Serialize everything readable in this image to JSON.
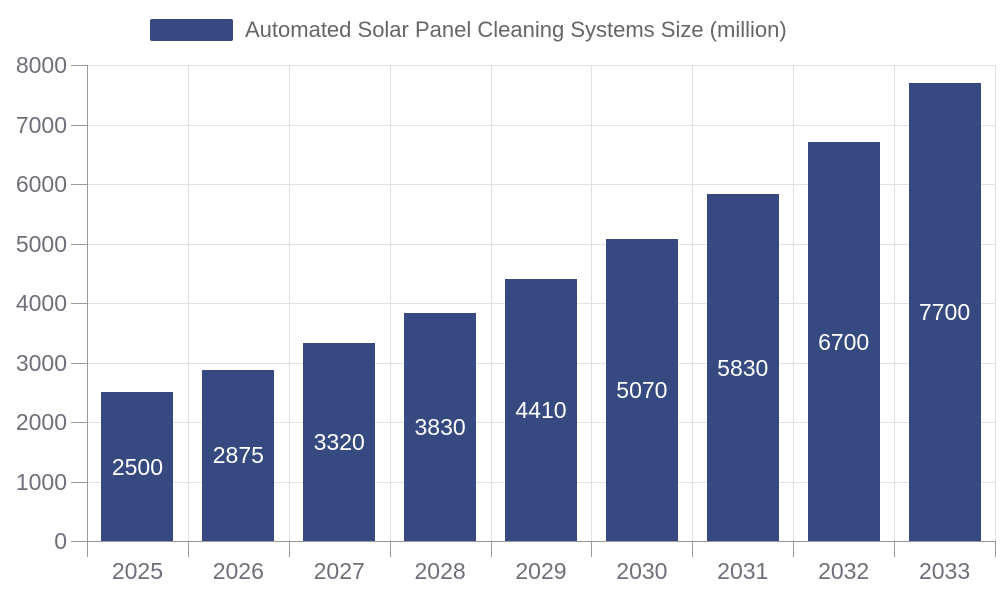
{
  "legend": {
    "label": "Automated Solar Panel Cleaning Systems Size (million)"
  },
  "chart_data": {
    "type": "bar",
    "title": "Automated Solar Panel Cleaning Systems Size (million)",
    "categories": [
      "2025",
      "2026",
      "2027",
      "2028",
      "2029",
      "2030",
      "2031",
      "2032",
      "2033"
    ],
    "values": [
      2500,
      2875,
      3320,
      3830,
      4410,
      5070,
      5830,
      6700,
      7700
    ],
    "xlabel": "",
    "ylabel": "",
    "ylim": [
      0,
      8000
    ],
    "ytick_interval": 1000,
    "yticks": [
      0,
      1000,
      2000,
      3000,
      4000,
      5000,
      6000,
      7000,
      8000
    ],
    "grid": true,
    "legend_position": "top",
    "value_labels": "inside-center",
    "colors": {
      "bar": "#364980",
      "value_label": "#FFFFFF",
      "axis_label": "#6E7079",
      "legend_text": "#666666",
      "gridline": "#E2E2E2",
      "axis_line": "#999999"
    }
  }
}
